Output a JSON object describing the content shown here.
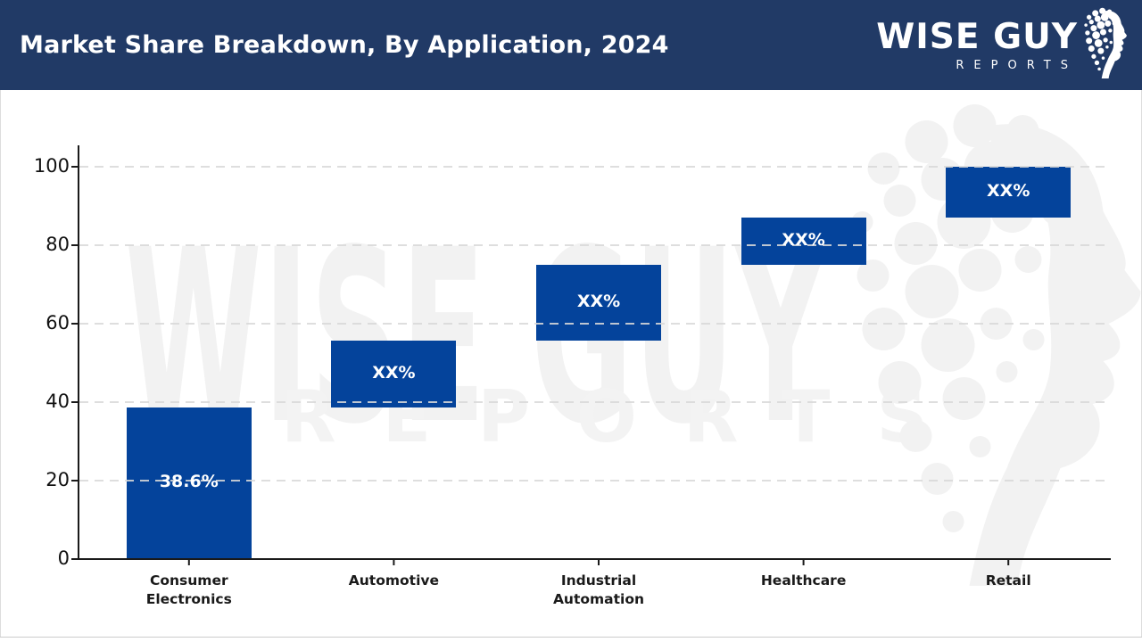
{
  "header": {
    "title": "Market Share Breakdown, By Application, 2024",
    "bg_color": "#213A66",
    "logo": {
      "line1": "WISE GUY",
      "line2": "REPORTS"
    }
  },
  "watermark": {
    "line1": "WISE GUY",
    "line2": "REPORTS"
  },
  "chart_data": {
    "type": "bar",
    "subtype": "waterfall",
    "title": "Market Share Breakdown, By Application, 2024",
    "categories": [
      "Consumer Electronics",
      "Automotive",
      "Industrial Automation",
      "Healthcare",
      "Retail"
    ],
    "segments": [
      {
        "category": "Consumer Electronics",
        "label_lines": [
          "Consumer",
          "Electronics"
        ],
        "start": 0,
        "end": 38.6,
        "value_label": "38.6%"
      },
      {
        "category": "Automotive",
        "label_lines": [
          "Automotive"
        ],
        "start": 38.6,
        "end": 55.6,
        "value_label": "XX%"
      },
      {
        "category": "Industrial Automation",
        "label_lines": [
          "Industrial",
          "Automation"
        ],
        "start": 55.6,
        "end": 75.0,
        "value_label": "XX%"
      },
      {
        "category": "Healthcare",
        "label_lines": [
          "Healthcare"
        ],
        "start": 75.0,
        "end": 87.0,
        "value_label": "XX%"
      },
      {
        "category": "Retail",
        "label_lines": [
          "Retail"
        ],
        "start": 87.0,
        "end": 100.0,
        "value_label": "XX%"
      }
    ],
    "ylim": [
      0,
      105.5
    ],
    "yticks": [
      0,
      20,
      40,
      60,
      80,
      100
    ],
    "xlabel": "",
    "ylabel": "",
    "legend": "none",
    "grid": {
      "axis": "y",
      "style": "dashed",
      "color": "#d9d9d9",
      "above_bars": true
    },
    "bar_color": "#04439B",
    "bar_label_color": "#ffffff",
    "axis_color": "#1a1a1a"
  }
}
